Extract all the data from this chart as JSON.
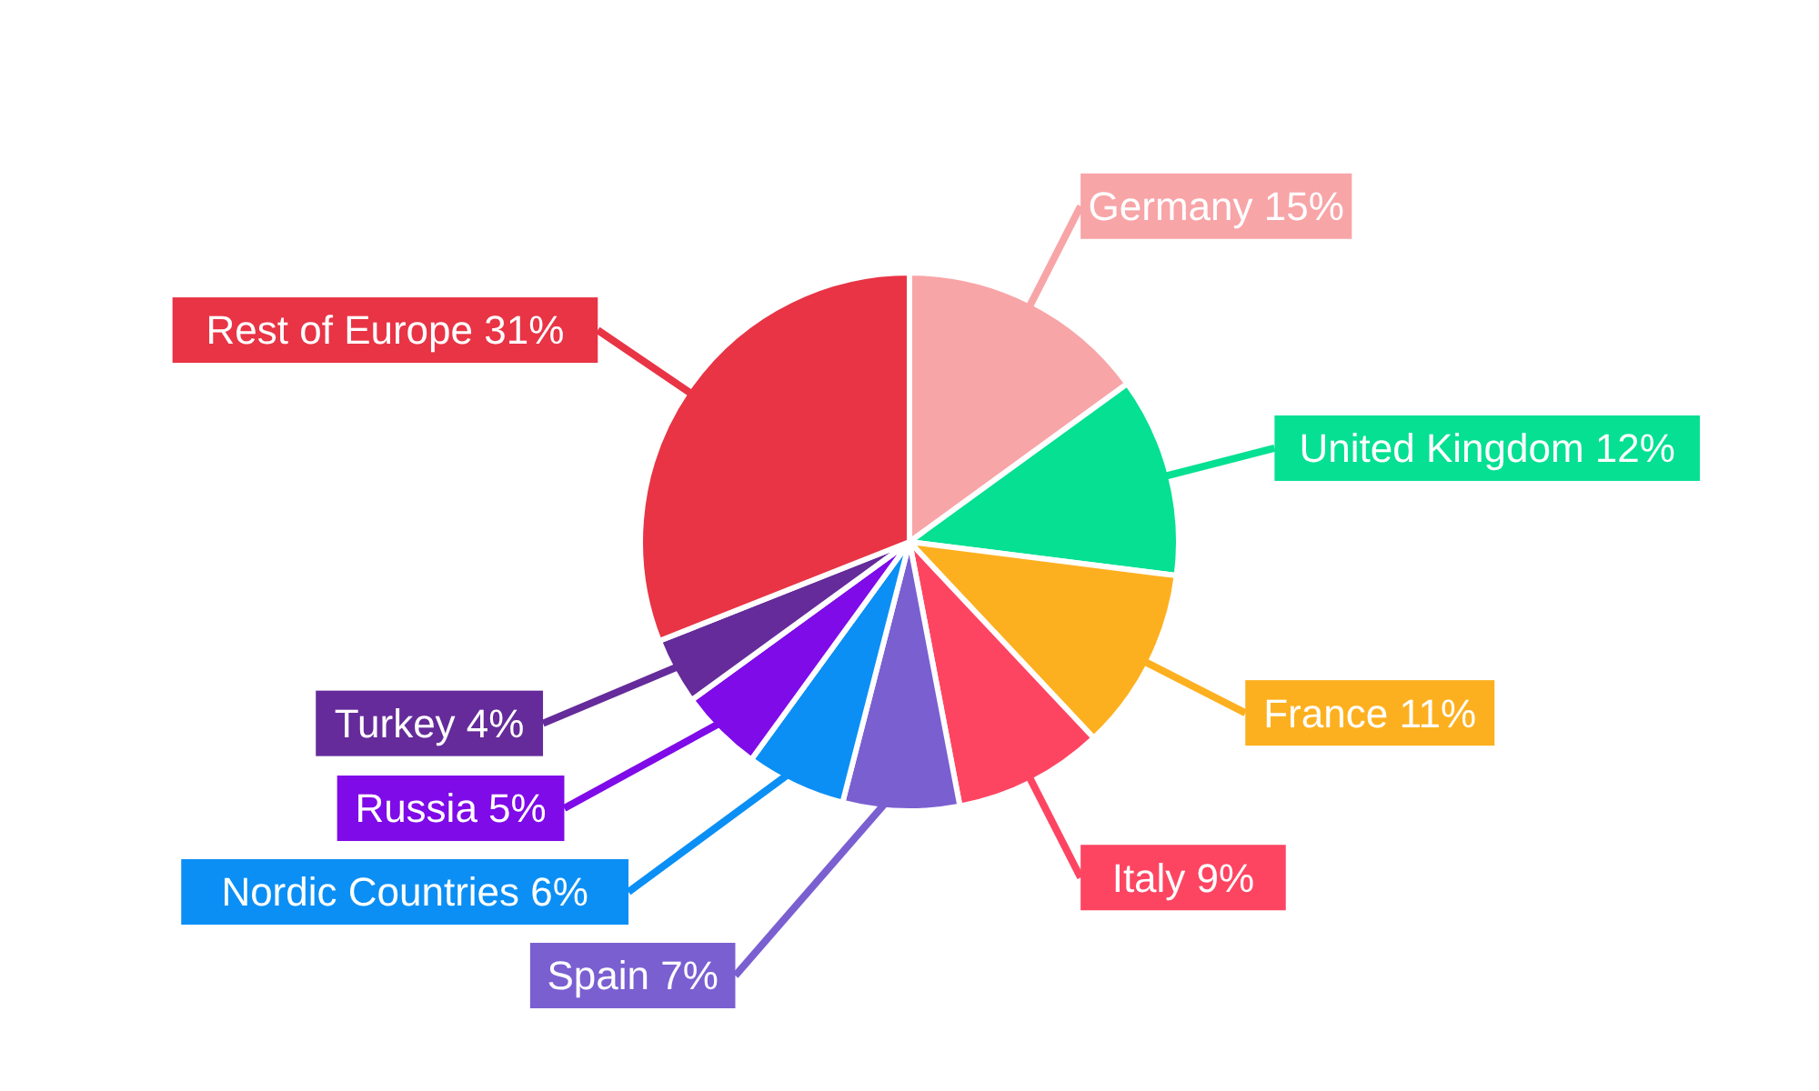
{
  "chart_data": {
    "type": "pie",
    "categories": [
      "Germany",
      "United Kingdom",
      "France",
      "Italy",
      "Spain",
      "Nordic Countries",
      "Russia",
      "Turkey",
      "Rest of Europe"
    ],
    "values": [
      15,
      12,
      11,
      9,
      7,
      6,
      5,
      4,
      31
    ],
    "colors": [
      "#f8a5a8",
      "#05e092",
      "#fdb01f",
      "#fd4562",
      "#7a5fd1",
      "#0b8ff5",
      "#7f0be8",
      "#652b9a",
      "#e83445"
    ],
    "value_labels": [
      "15%",
      "12%",
      "11%",
      "9%",
      "7%",
      "6%",
      "5%",
      "4%",
      "31%"
    ]
  }
}
